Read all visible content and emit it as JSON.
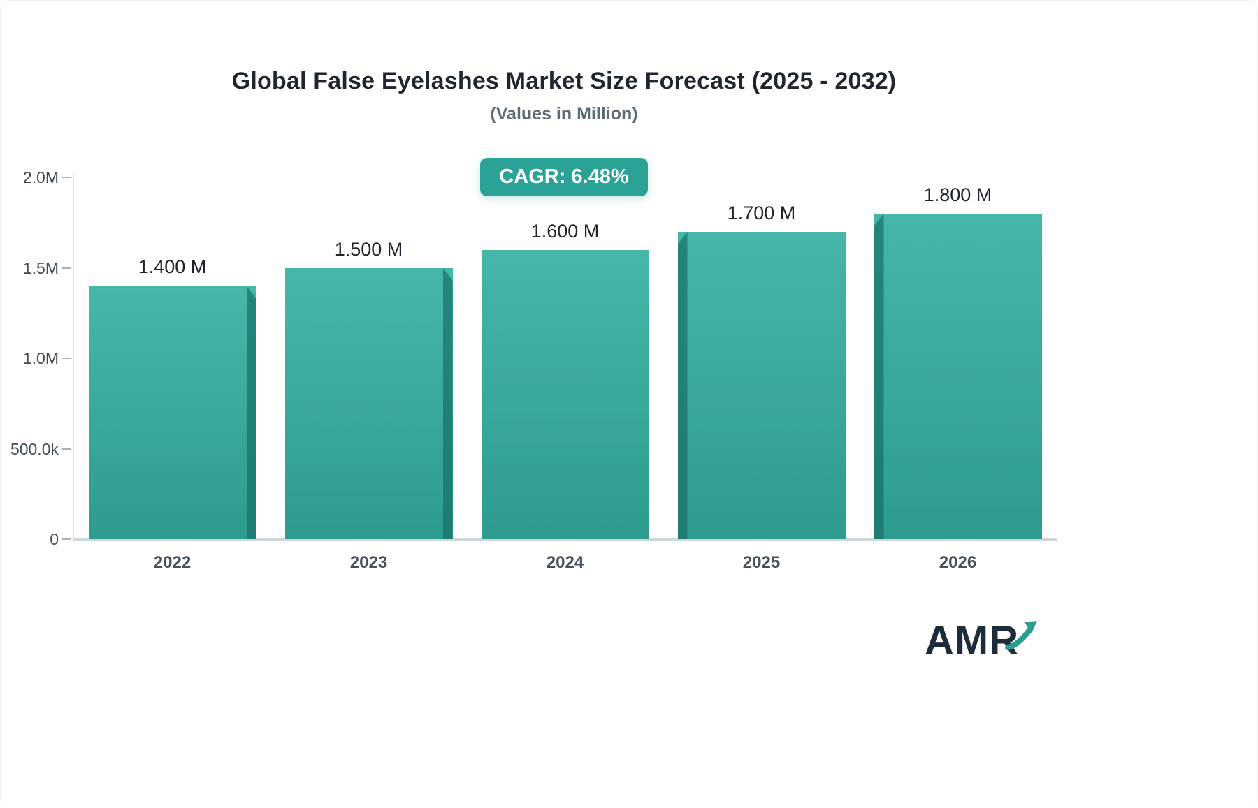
{
  "chart_data": {
    "type": "bar",
    "title": "Global False Eyelashes Market Size Forecast (2025 - 2032)",
    "subtitle": "(Values in Million)",
    "cagr_label": "CAGR: 6.48%",
    "categories": [
      "2022",
      "2023",
      "2024",
      "2025",
      "2026"
    ],
    "values": [
      1400000,
      1500000,
      1600000,
      1700000,
      1800000
    ],
    "value_labels": [
      "1.400 M",
      "1.500 M",
      "1.600 M",
      "1.700 M",
      "1.800 M"
    ],
    "xlabel": "",
    "ylabel": "",
    "ylim": [
      0,
      2000000
    ],
    "grid": "off",
    "legend": "none",
    "y_ticks": [
      {
        "label": "2.0M",
        "value": 2000000
      },
      {
        "label": "1.5M",
        "value": 1500000
      },
      {
        "label": "1.0M",
        "value": 1000000
      },
      {
        "label": "500.0k",
        "value": 500000
      },
      {
        "label": "0",
        "value": 0
      }
    ],
    "shade_sides": [
      "right",
      "right",
      "none",
      "left",
      "left"
    ],
    "colors": {
      "bar_top": "#46b6a8",
      "bar_bottom": "#2d9c8e",
      "bar_shade": "#1e7c72",
      "badge_bg": "#2aa396",
      "title": "#20262e",
      "subtitle": "#5b6a74",
      "axis_text": "#3f4a54"
    }
  },
  "logo": {
    "text": "AMR",
    "arrow_color": "#2a9d8f"
  }
}
